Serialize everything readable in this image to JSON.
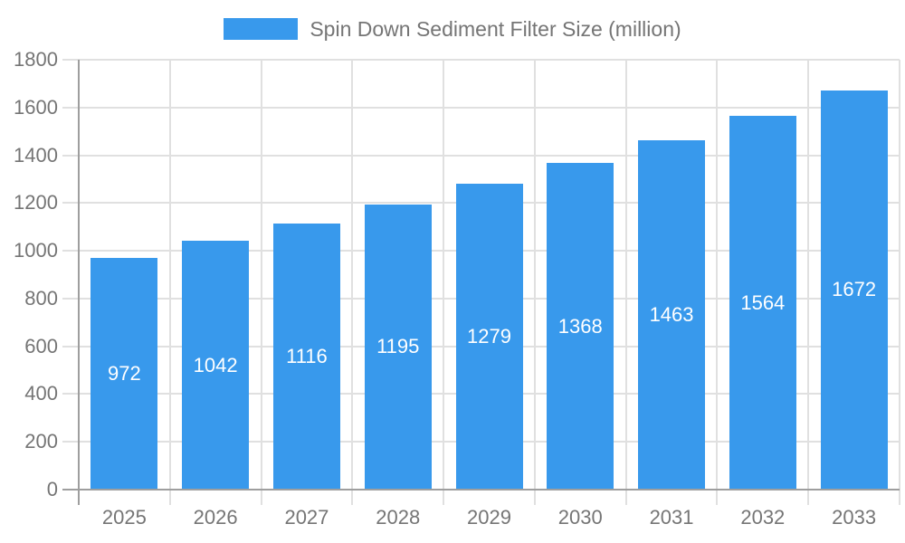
{
  "legend": {
    "label": "Spin Down Sediment Filter Size (million)"
  },
  "chart_data": {
    "type": "bar",
    "title": "Spin Down Sediment Filter Size (million)",
    "categories": [
      "2025",
      "2026",
      "2027",
      "2028",
      "2029",
      "2030",
      "2031",
      "2032",
      "2033"
    ],
    "values": [
      972,
      1042,
      1116,
      1195,
      1279,
      1368,
      1463,
      1564,
      1672
    ],
    "xlabel": "",
    "ylabel": "",
    "ylim": [
      0,
      1800
    ],
    "yticks": [
      0,
      200,
      400,
      600,
      800,
      1000,
      1200,
      1400,
      1600,
      1800
    ],
    "grid": true,
    "legend_position": "top-center",
    "bar_labels_inside": true,
    "colors": {
      "bar": "#3899EC",
      "grid": "#E0E0E0",
      "axis": "#9E9E9E",
      "tick_label": "#757575",
      "bar_label": "#FFFFFF",
      "background": "#FFFFFF"
    }
  }
}
